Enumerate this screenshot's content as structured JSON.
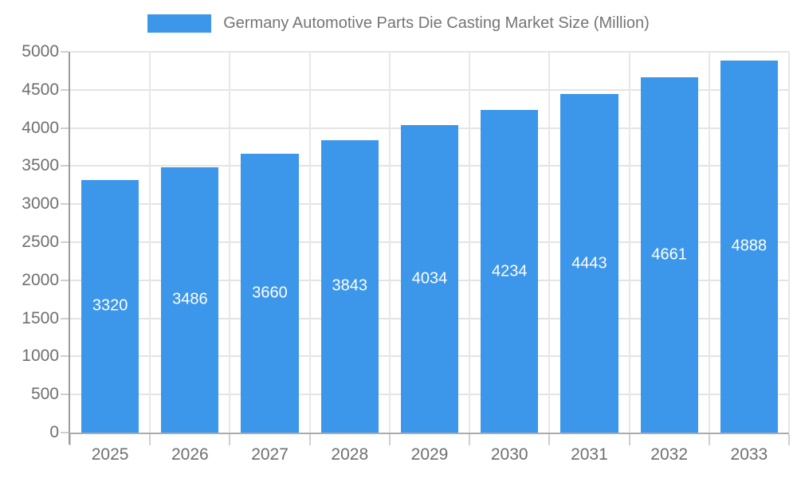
{
  "legend": {
    "label": "Germany Automotive Parts Die Casting Market Size (Million)"
  },
  "colors": {
    "bar": "#3c96ea",
    "bar_label": "#ffffff",
    "legend_text": "#757575",
    "axis_text": "#6f6f6f"
  },
  "chart_data": {
    "type": "bar",
    "title": "Germany Automotive Parts Die Casting Market Size (Million)",
    "categories": [
      "2025",
      "2026",
      "2027",
      "2028",
      "2029",
      "2030",
      "2031",
      "2032",
      "2033"
    ],
    "values": [
      3320,
      3486,
      3660,
      3843,
      4034,
      4234,
      4443,
      4661,
      4888
    ],
    "xlabel": "",
    "ylabel": "",
    "ylim": [
      0,
      5000
    ],
    "ytick_step": 500,
    "grid": true,
    "legend_position": "top",
    "bar_color": "#3c96ea",
    "value_labels": "inside-center"
  }
}
